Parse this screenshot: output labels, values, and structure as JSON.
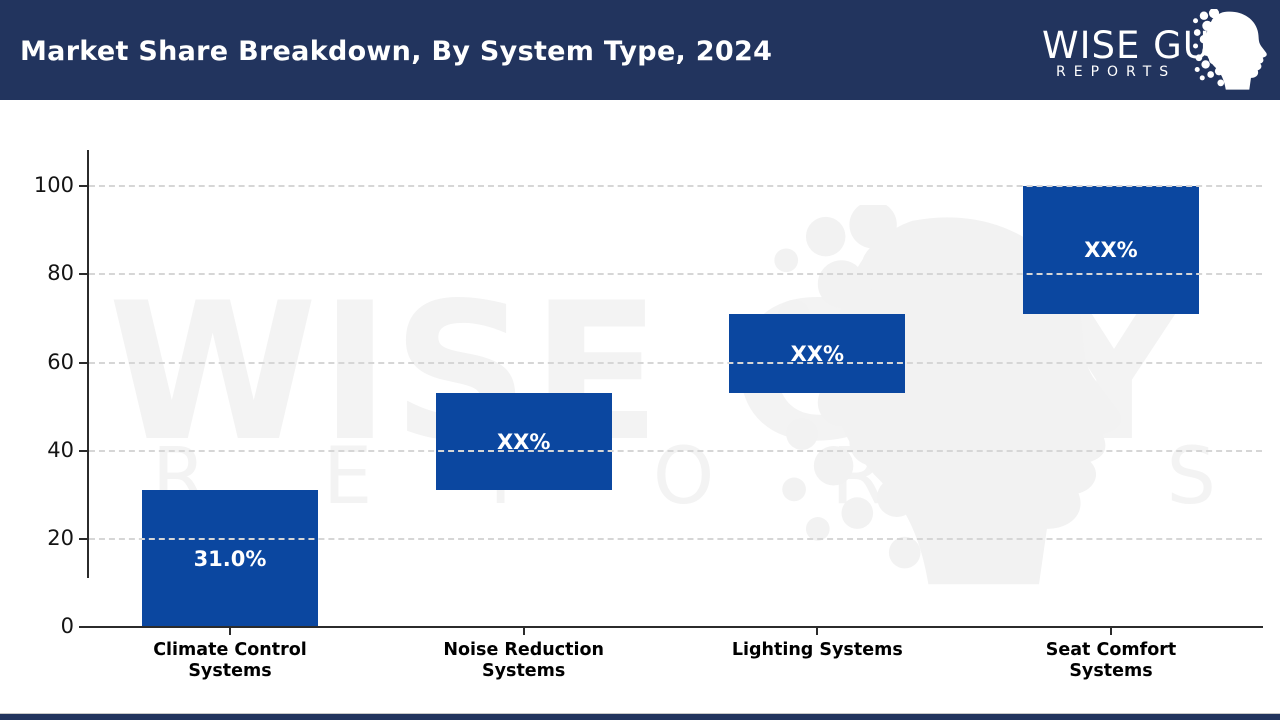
{
  "header": {
    "title": "Market Share Breakdown, By System Type, 2024",
    "bg_color": "#22345e",
    "logo": {
      "line1": "WISE GUY",
      "line2": "REPORTS"
    }
  },
  "watermark": {
    "line1": "WISE GUY",
    "line2": "R E P O R T S"
  },
  "chart_data": {
    "type": "bar",
    "subtype": "waterfall",
    "title": "Market Share Breakdown, By System Type, 2024",
    "categories": [
      "Climate Control\nSystems",
      "Noise Reduction\nSystems",
      "Lighting Systems",
      "Seat Comfort\nSystems"
    ],
    "segments": [
      {
        "category": "Climate Control Systems",
        "start": 0,
        "end": 31,
        "value": 31,
        "label": "31.0%"
      },
      {
        "category": "Noise Reduction Systems",
        "start": 31,
        "end": 53,
        "value": 22,
        "label": "XX%"
      },
      {
        "category": "Lighting Systems",
        "start": 53,
        "end": 71,
        "value": 18,
        "label": "XX%"
      },
      {
        "category": "Seat Comfort Systems",
        "start": 71,
        "end": 100,
        "value": 29,
        "label": "XX%"
      }
    ],
    "ylim": [
      0,
      100
    ],
    "yticks": [
      0,
      20,
      40,
      60,
      80,
      100
    ],
    "xlabel": "",
    "ylabel": "",
    "grid": "horizontal-dashed",
    "legend": "none",
    "bar_color": "#0b47a0",
    "bar_label_color": "#ffffff",
    "header_color": "#22345e"
  }
}
